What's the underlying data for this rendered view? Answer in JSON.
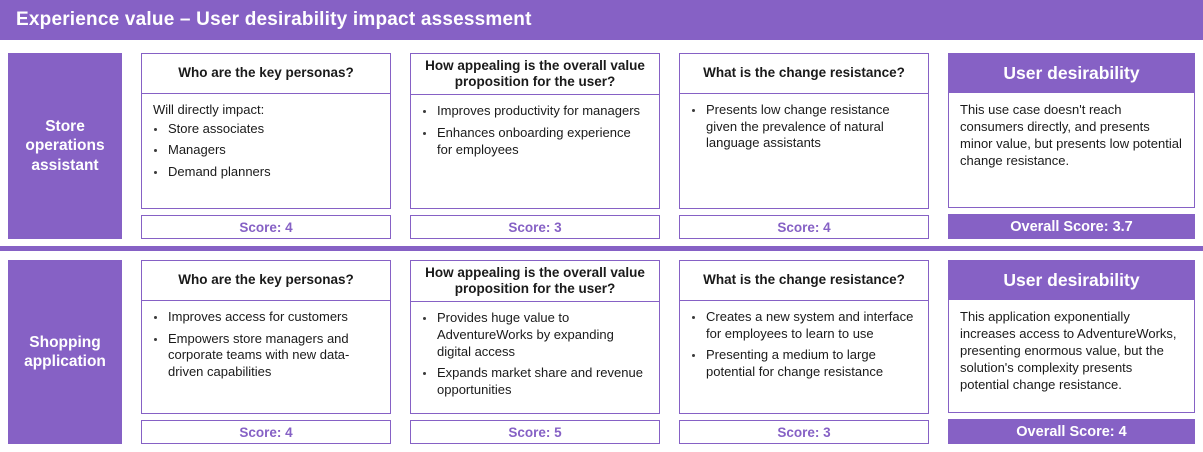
{
  "colors": {
    "purple": "#8661C5",
    "text": "#1a1a1a",
    "bg": "#ffffff"
  },
  "header": {
    "title": "Experience value – User desirability impact assessment"
  },
  "rows": [
    {
      "label": "Store operations assistant",
      "columns": [
        {
          "title": "Who are the key personas?",
          "intro": "Will directly impact:",
          "bullets": [
            "Store associates",
            "Managers",
            "Demand planners"
          ],
          "score_label": "Score: 4"
        },
        {
          "title": "How appealing is the overall value proposition for the user?",
          "bullets": [
            "Improves productivity for managers",
            "Enhances onboarding experience for employees"
          ],
          "score_label": "Score: 3"
        },
        {
          "title": "What is the change resistance?",
          "bullets": [
            "Presents low change resistance given the prevalence of natural language assistants"
          ],
          "score_label": "Score: 4"
        }
      ],
      "summary": {
        "title": "User desirability",
        "text": "This use case doesn't reach consumers directly, and presents minor value, but presents low potential change resistance.",
        "overall_label": "Overall Score: 3.7"
      }
    },
    {
      "label": "Shopping application",
      "columns": [
        {
          "title": "Who are the key personas?",
          "bullets": [
            "Improves access for customers",
            "Empowers store managers and corporate teams with new data-driven capabilities"
          ],
          "score_label": "Score: 4"
        },
        {
          "title": "How appealing is the overall value proposition for the user?",
          "bullets": [
            "Provides huge value to AdventureWorks by expanding digital access",
            "Expands market share and revenue opportunities"
          ],
          "score_label": "Score: 5"
        },
        {
          "title": "What is the change resistance?",
          "bullets": [
            "Creates a new system and interface for employees to learn to use",
            "Presenting a medium to large potential for change resistance"
          ],
          "score_label": "Score: 3"
        }
      ],
      "summary": {
        "title": "User desirability",
        "text": "This application exponentially increases access to AdventureWorks, presenting enormous value, but the solution's complexity presents potential change resistance.",
        "overall_label": "Overall Score: 4"
      }
    }
  ]
}
